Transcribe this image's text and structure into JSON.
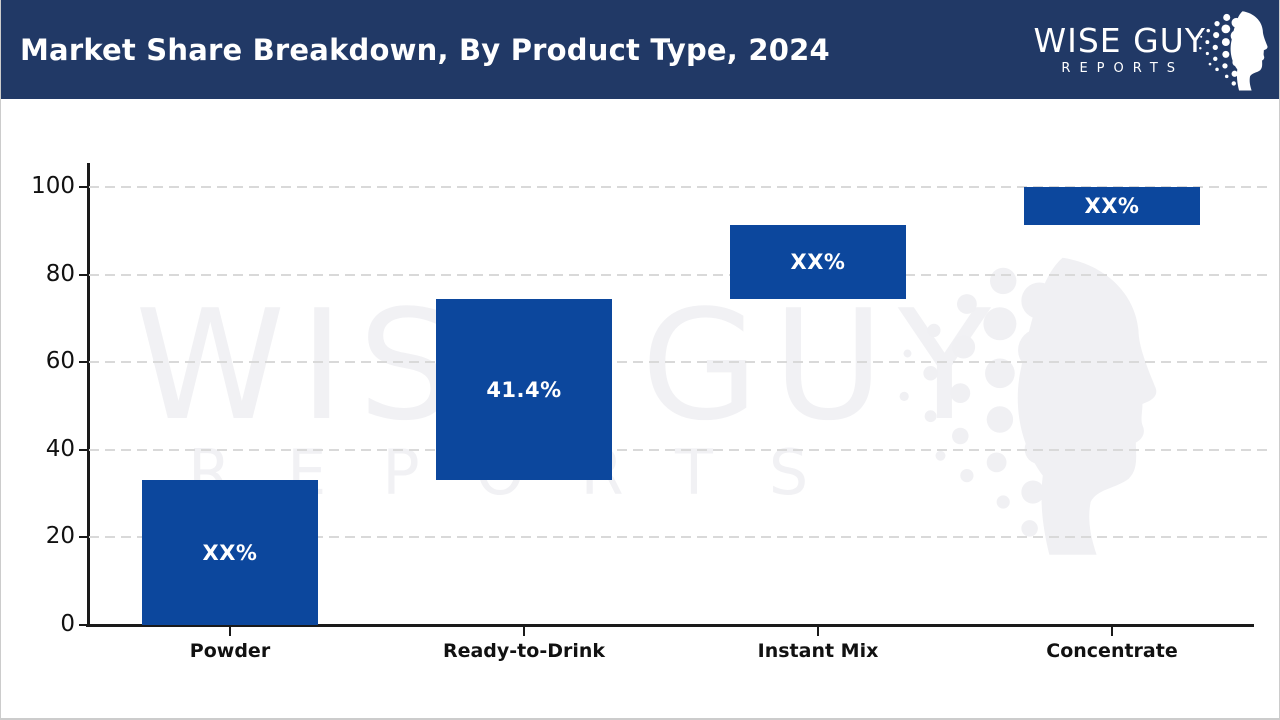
{
  "header": {
    "title": "Market Share Breakdown, By Product Type, 2024",
    "bg_color": "#213966",
    "logo": {
      "line1": "WISE GUY",
      "line2": "REPORTS"
    }
  },
  "watermark": {
    "line1": "WISE GUY",
    "line2": "REPORTS"
  },
  "chart_data": {
    "type": "bar",
    "subtype": "waterfall",
    "title": "Market Share Breakdown, By Product Type, 2024",
    "categories": [
      "Powder",
      "Ready-to-Drink",
      "Instant Mix",
      "Concentrate"
    ],
    "bars": [
      {
        "category": "Powder",
        "label": "XX%",
        "start": 0,
        "end": 33,
        "value_masked": true
      },
      {
        "category": "Ready-to-Drink",
        "label": "41.4%",
        "start": 33,
        "end": 74.4,
        "value_masked": false
      },
      {
        "category": "Instant Mix",
        "label": "XX%",
        "start": 74.4,
        "end": 91.4,
        "value_masked": true
      },
      {
        "category": "Concentrate",
        "label": "XX%",
        "start": 91.4,
        "end": 100,
        "value_masked": true
      }
    ],
    "ylim": [
      0,
      100
    ],
    "yticks": [
      0,
      20,
      40,
      60,
      80,
      100
    ],
    "xlabel": "",
    "ylabel": "",
    "bar_color": "#0c479d",
    "bar_label_color": "#ffffff",
    "grid": "horizontal-dashed",
    "gridline_color": "#d9d9d9",
    "legend": "none"
  }
}
